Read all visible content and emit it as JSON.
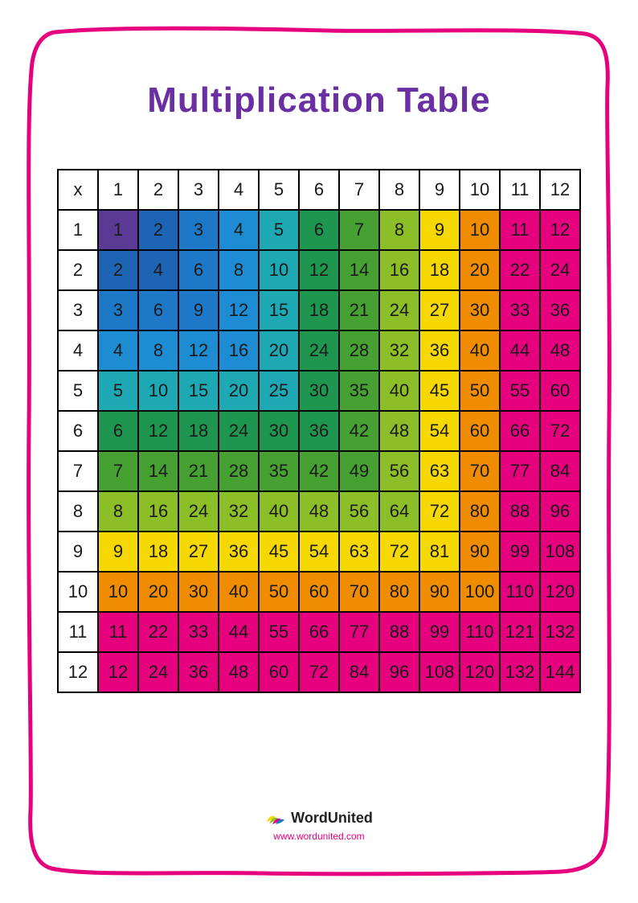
{
  "title": "Multiplication Table",
  "title_color": "#6a2fa3",
  "frame_color": "#e6007e",
  "frame_stroke_width": 5,
  "header_bg": "#ffffff",
  "cell_text_color": "#1a1a1a",
  "cell_font_size": 22,
  "corner_label": "x",
  "size": 12,
  "diagonal_colors": [
    "#5b3a96",
    "#5b3a96",
    "#1e64b4",
    "#1e78c8",
    "#1e8cd2",
    "#1ea8b4",
    "#1e9650",
    "#46a032",
    "#8cbe28",
    "#f5d800",
    "#f08c00",
    "#e6007e",
    "#e6007e"
  ],
  "brand_name": "WordUnited",
  "brand_url": "www.wordunited.com",
  "brand_icon_colors": [
    "#f5d800",
    "#8cbe28",
    "#e6007e",
    "#1e78c8"
  ]
}
